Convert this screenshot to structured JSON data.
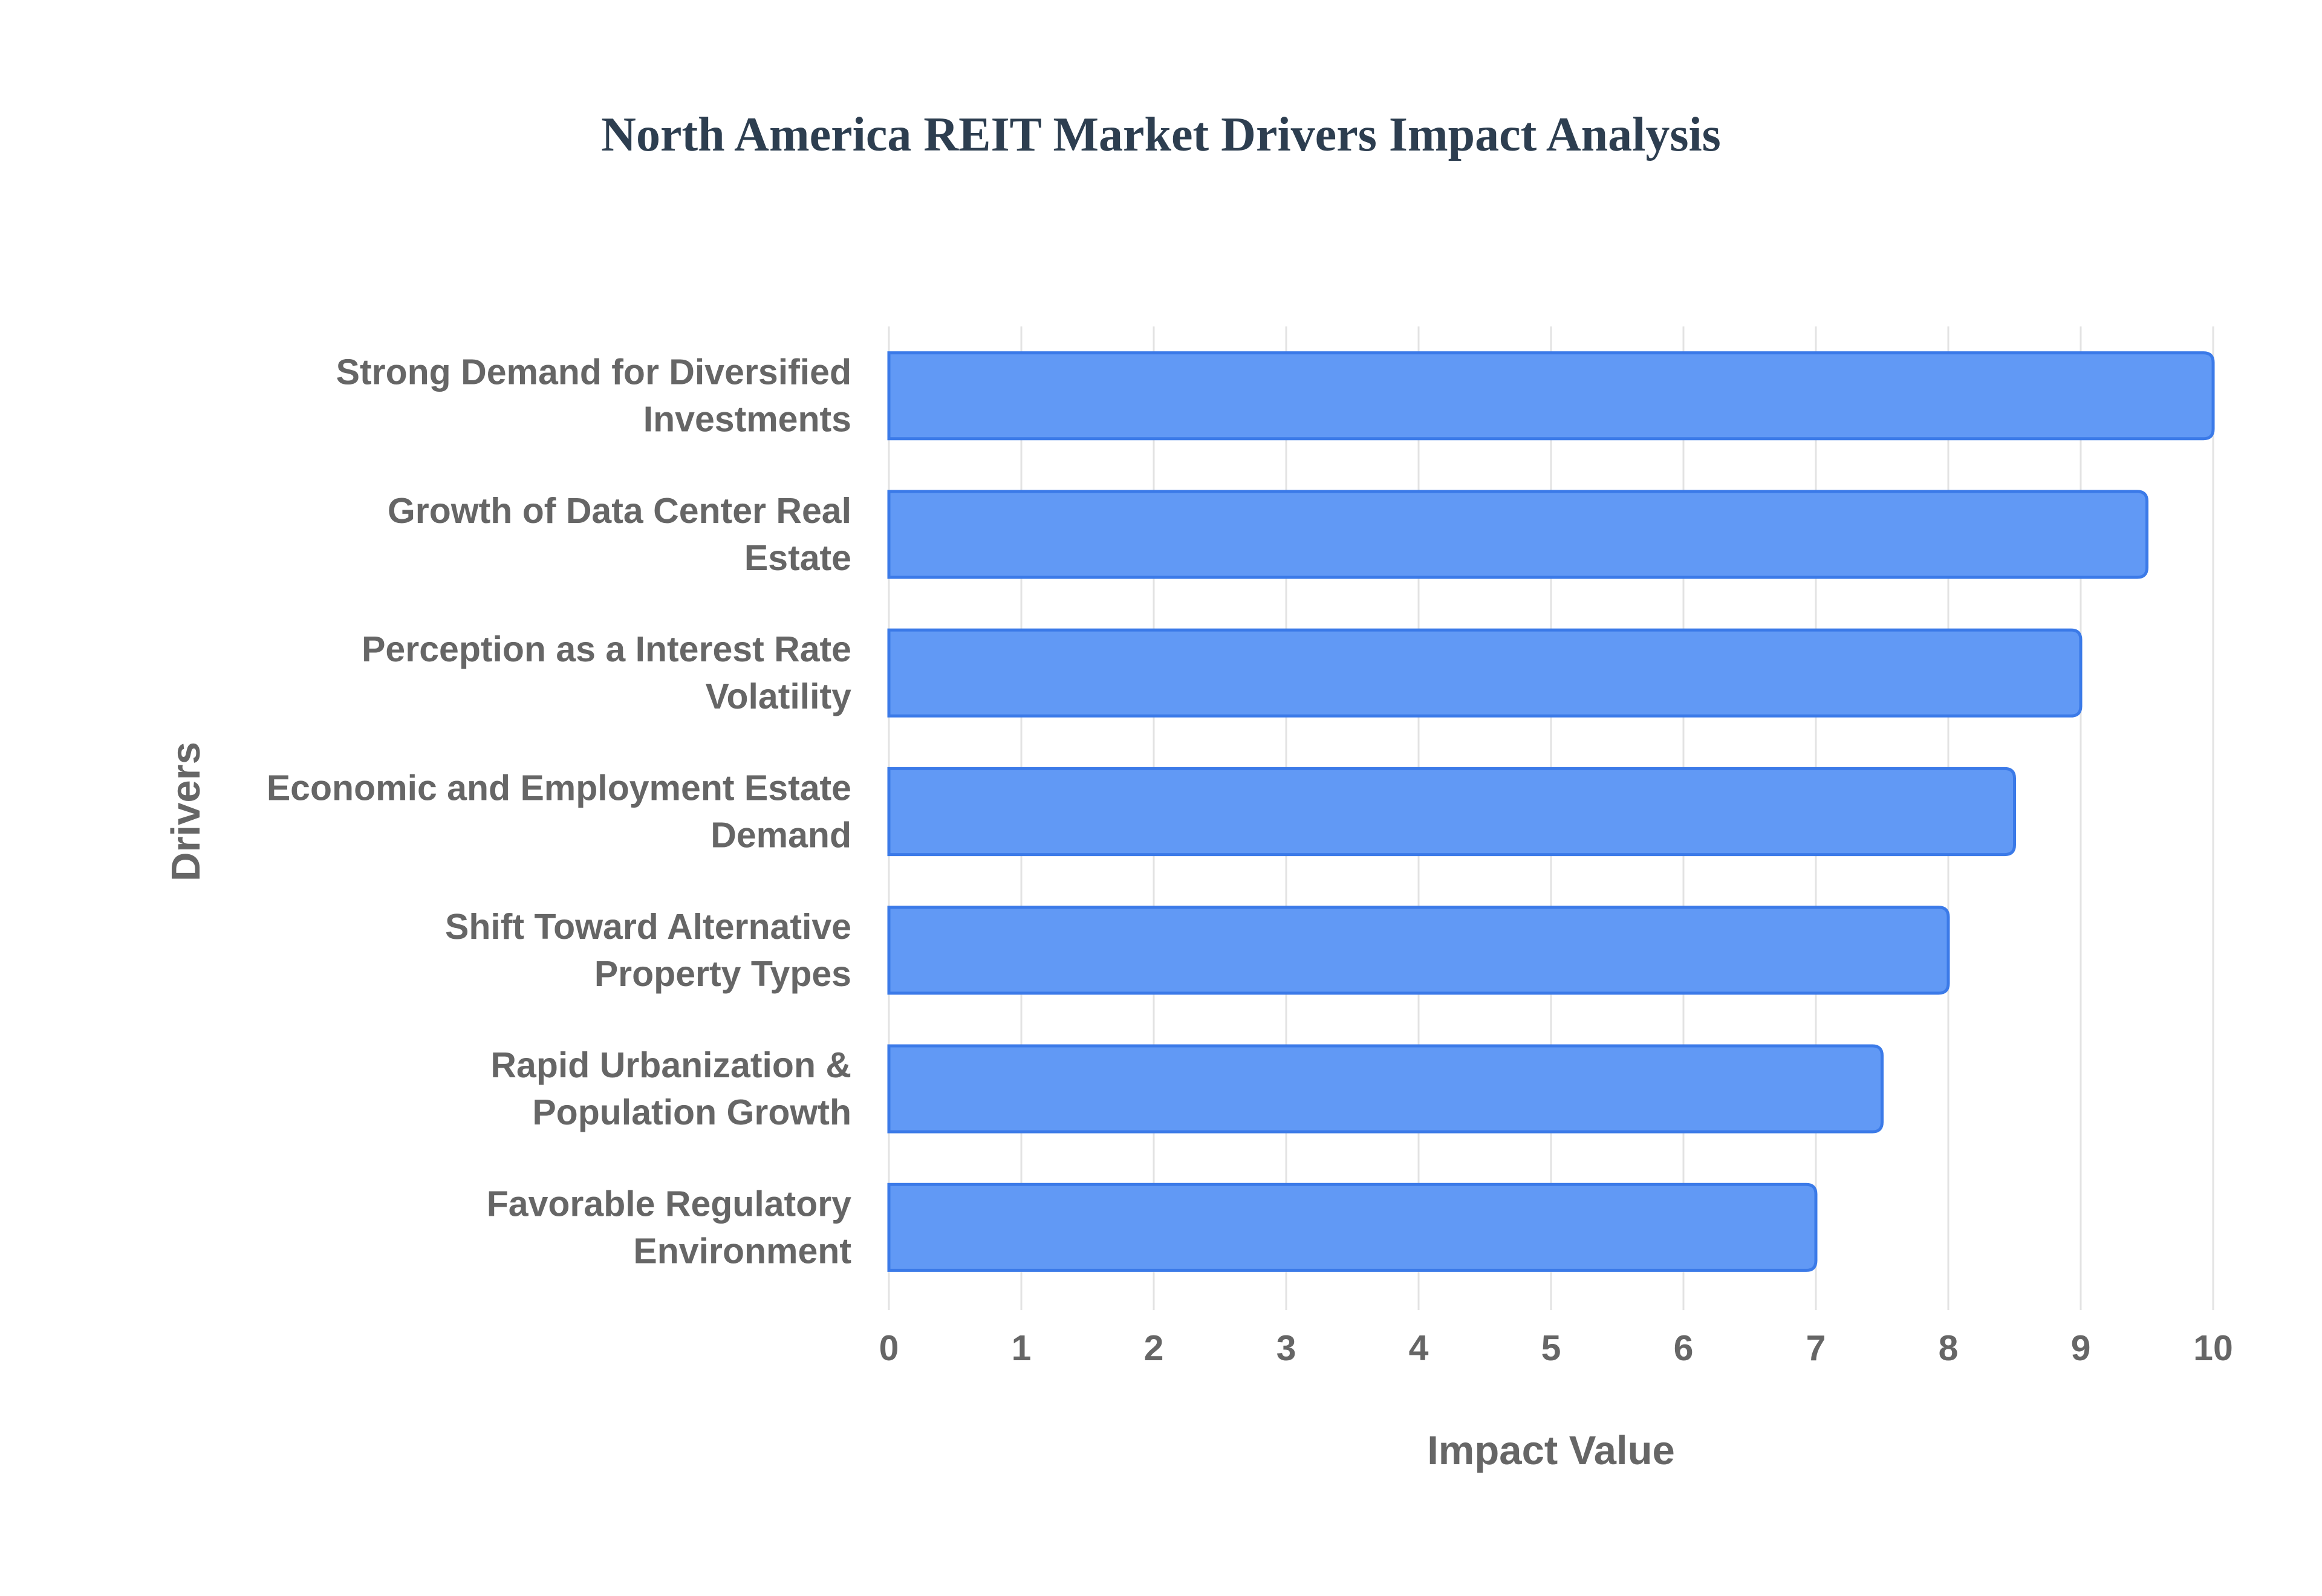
{
  "chart_data": {
    "type": "bar",
    "orientation": "horizontal",
    "title": "North America REIT Market Drivers Impact Analysis",
    "xlabel": "Impact Value",
    "ylabel": "Drivers",
    "categories": [
      [
        "Strong Demand for Diversified",
        "Investments"
      ],
      [
        "Growth of Data Center Real",
        "Estate"
      ],
      [
        "Perception as a Interest Rate",
        "Volatility"
      ],
      [
        "Economic and Employment Estate",
        "Demand"
      ],
      [
        "Shift Toward Alternative",
        "Property Types"
      ],
      [
        "Rapid Urbanization &",
        "Population Growth"
      ],
      [
        "Favorable Regulatory",
        "Environment"
      ]
    ],
    "values": [
      10,
      9.5,
      9,
      8.5,
      8,
      7.5,
      7
    ],
    "xlim": [
      0,
      10
    ],
    "xticks": [
      "0",
      "1",
      "2",
      "3",
      "4",
      "5",
      "6",
      "7",
      "8",
      "9",
      "10"
    ],
    "grid": true,
    "bar_color": "#6199f5",
    "bar_border_color": "#3b7ae8"
  }
}
